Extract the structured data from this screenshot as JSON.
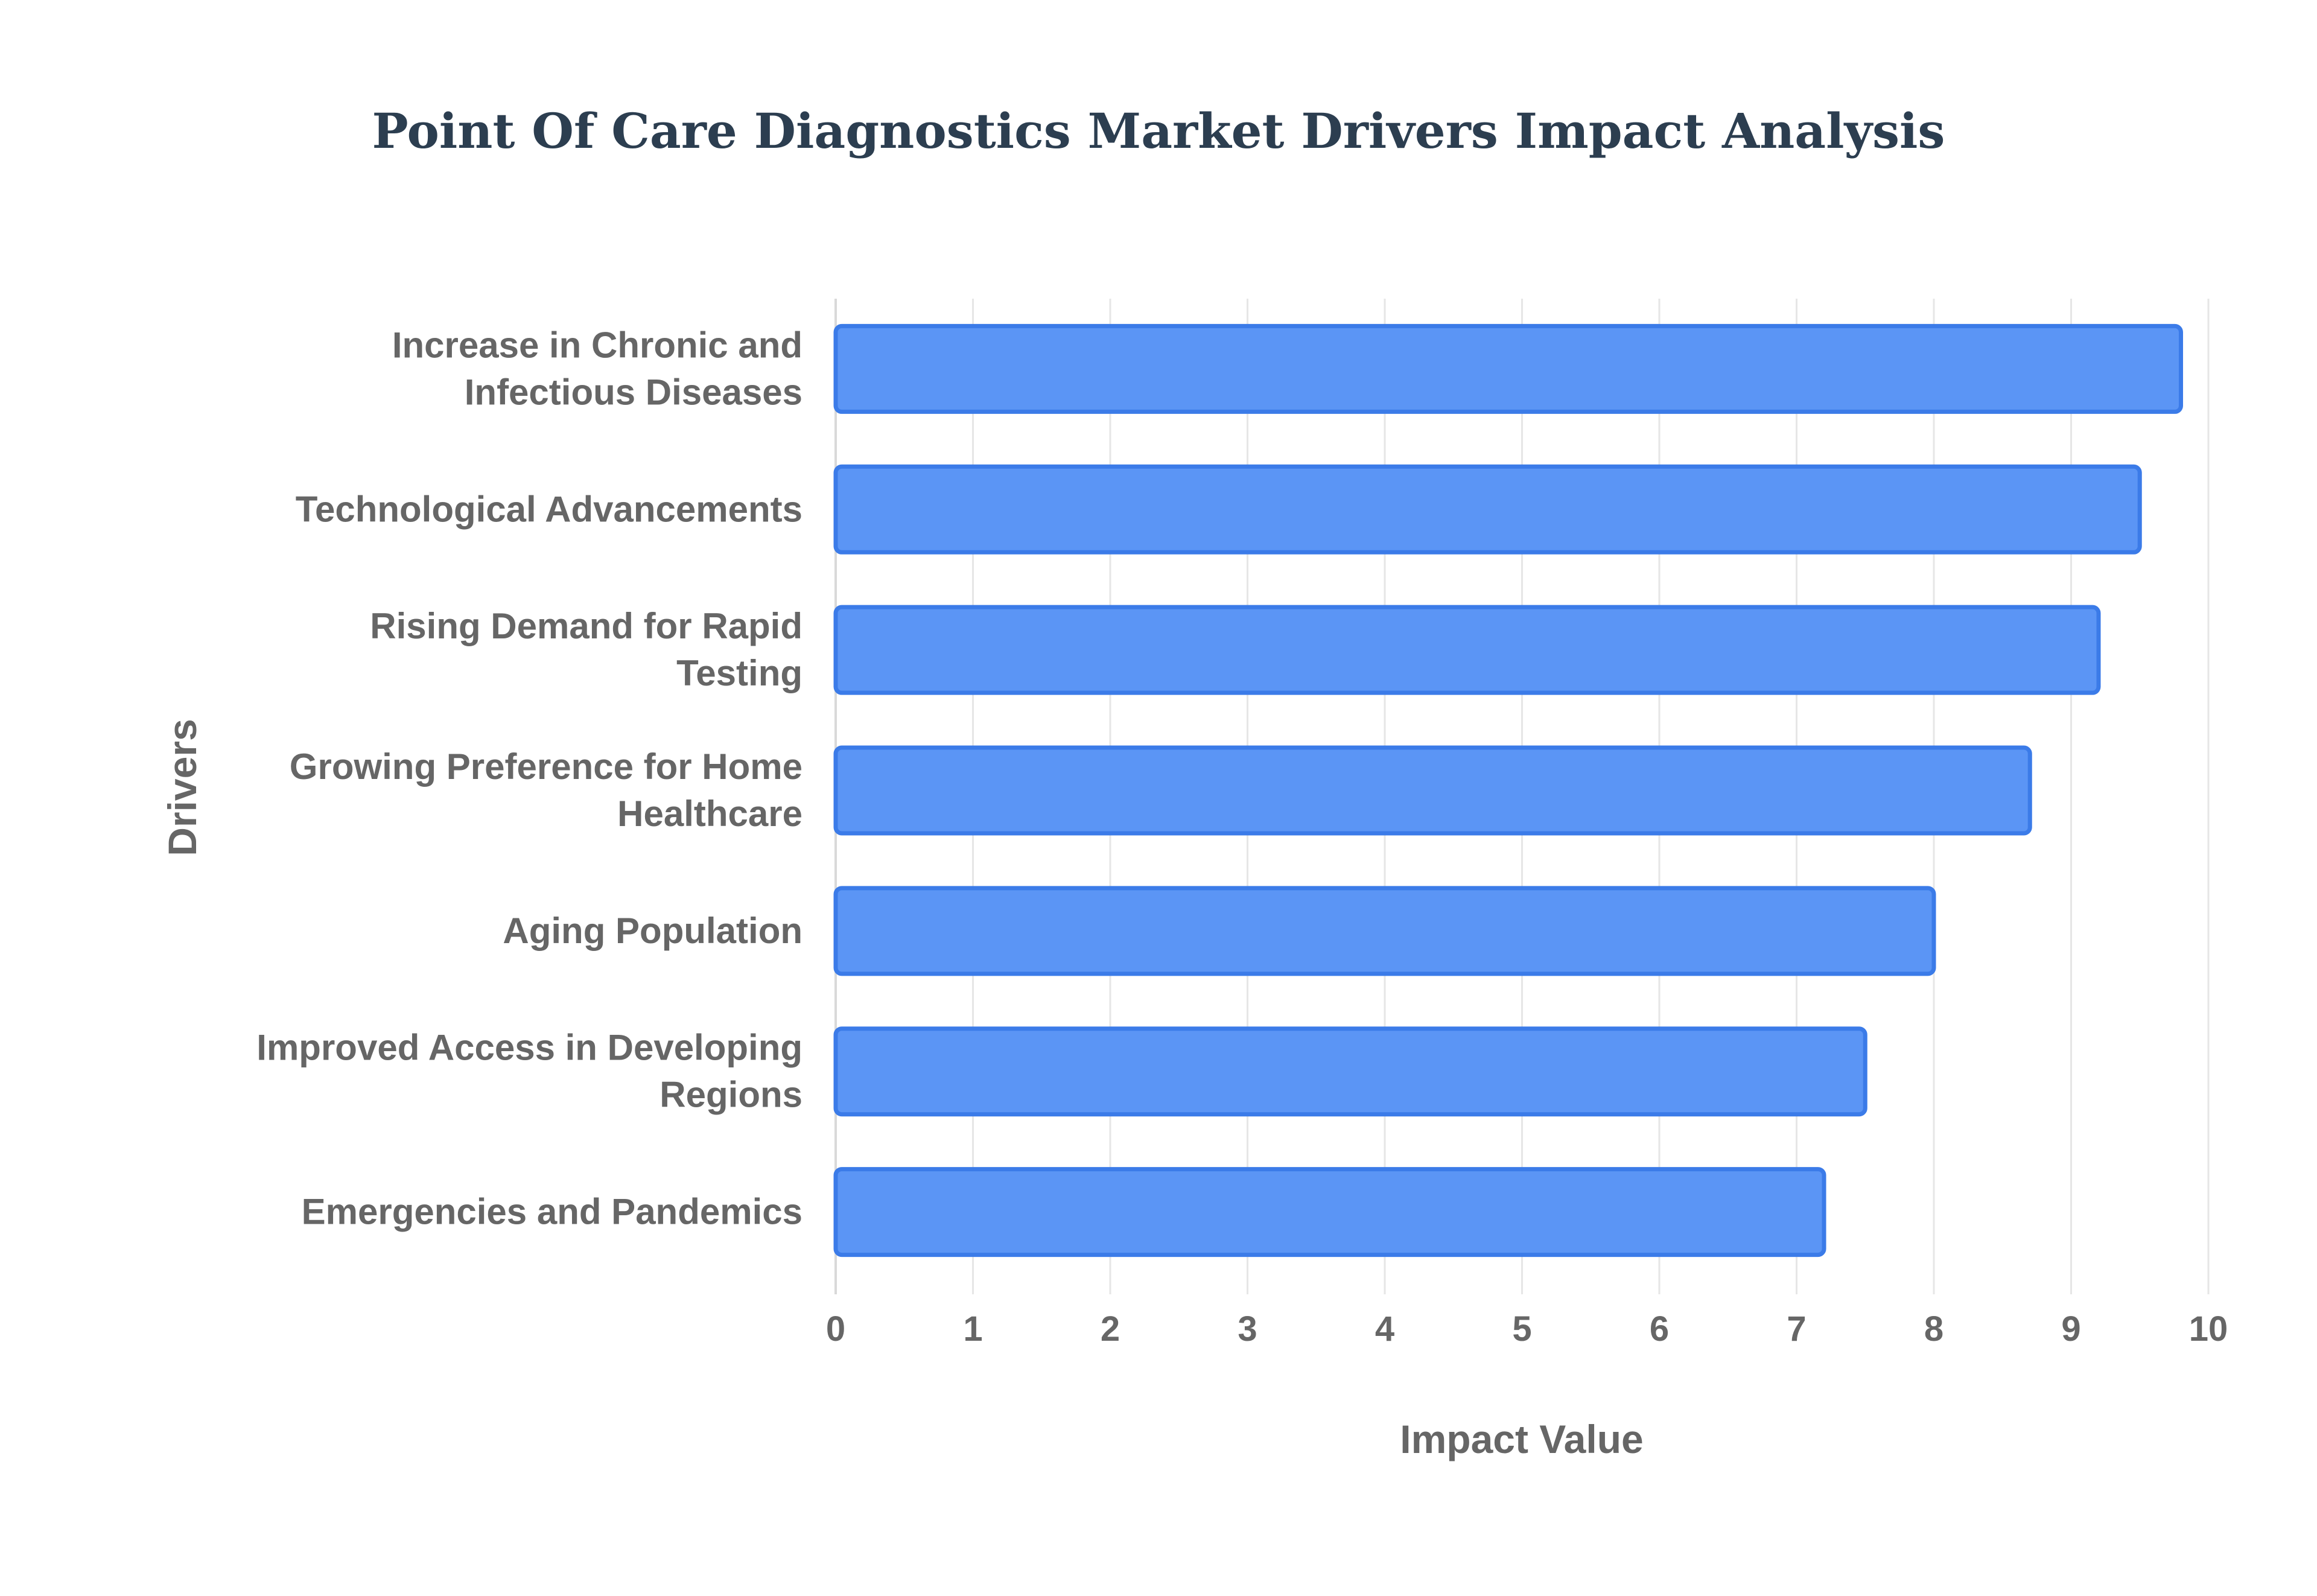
{
  "chart_data": {
    "type": "bar",
    "orientation": "horizontal",
    "title": "Point Of Care Diagnostics Market Drivers Impact Analysis",
    "xlabel": "Impact Value",
    "ylabel": "Drivers",
    "categories": [
      [
        "Increase in Chronic and",
        "Infectious Diseases"
      ],
      [
        "Technological Advancements"
      ],
      [
        "Rising Demand for Rapid",
        "Testing"
      ],
      [
        "Growing Preference for Home",
        "Healthcare"
      ],
      [
        "Aging Population"
      ],
      [
        "Improved Access in Developing",
        "Regions"
      ],
      [
        "Emergencies and Pandemics"
      ]
    ],
    "values": [
      9.8,
      9.5,
      9.2,
      8.7,
      8.0,
      7.5,
      7.2
    ],
    "xlim": [
      0,
      10
    ],
    "xticks": [
      "0",
      "1",
      "2",
      "3",
      "4",
      "5",
      "6",
      "7",
      "8",
      "9",
      "10"
    ],
    "grid": true,
    "colors": {
      "bar_fill": "#5b95f5",
      "bar_border": "#3b7be8",
      "title": "#2c3e50",
      "text": "#666666"
    }
  }
}
